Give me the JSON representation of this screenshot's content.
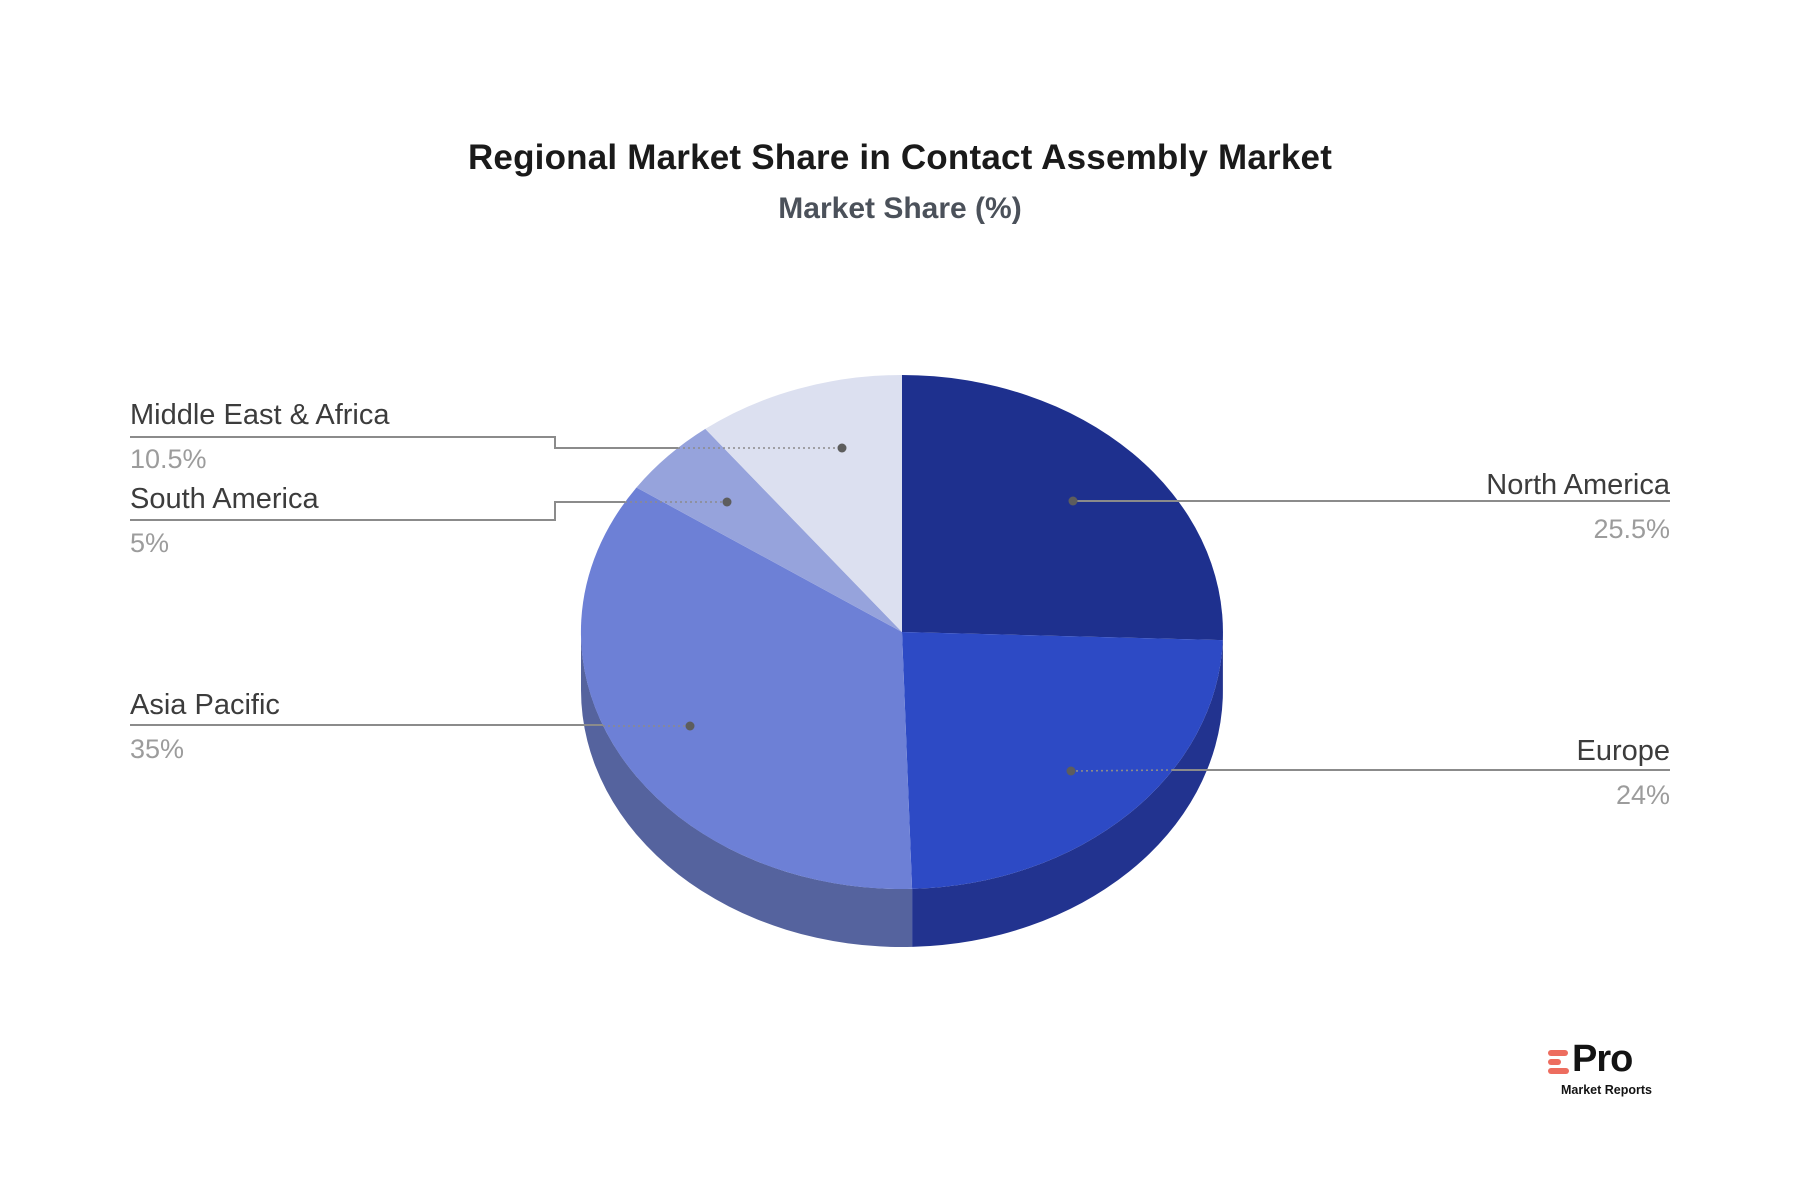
{
  "chart_data": {
    "type": "pie",
    "title": "Regional Market Share in Contact Assembly Market",
    "subtitle": "Market Share (%)",
    "unit": "%",
    "effect_3d": true,
    "direction": "clockwise",
    "start_angle_deg": 0,
    "legend_position": "callout-labels",
    "slices": [
      {
        "label": "North America",
        "value": 25.5,
        "display": "25.5%",
        "color": "#1e308e",
        "side_color": "#18276f"
      },
      {
        "label": "Europe",
        "value": 24,
        "display": "24%",
        "color": "#2d4ac5",
        "side_color": "#22338f"
      },
      {
        "label": "Asia Pacific",
        "value": 35,
        "display": "35%",
        "color": "#6d80d6",
        "side_color": "#55639e"
      },
      {
        "label": "South America",
        "value": 5,
        "display": "5%",
        "color": "#96a3dc",
        "side_color": "#7886bb"
      },
      {
        "label": "Middle East & Africa",
        "value": 10.5,
        "display": "10.5%",
        "color": "#dce0f0",
        "side_color": "#b9bed9"
      }
    ],
    "callout_line_color": "#8b8b8b",
    "callout_dot_color": "#5d5d5d",
    "label_text_color": "#3c3c3c",
    "percent_text_color": "#9c9c9c"
  },
  "logo": {
    "brand": "Pro",
    "tagline": "Market Reports",
    "accent_color": "#ed6d5f"
  }
}
